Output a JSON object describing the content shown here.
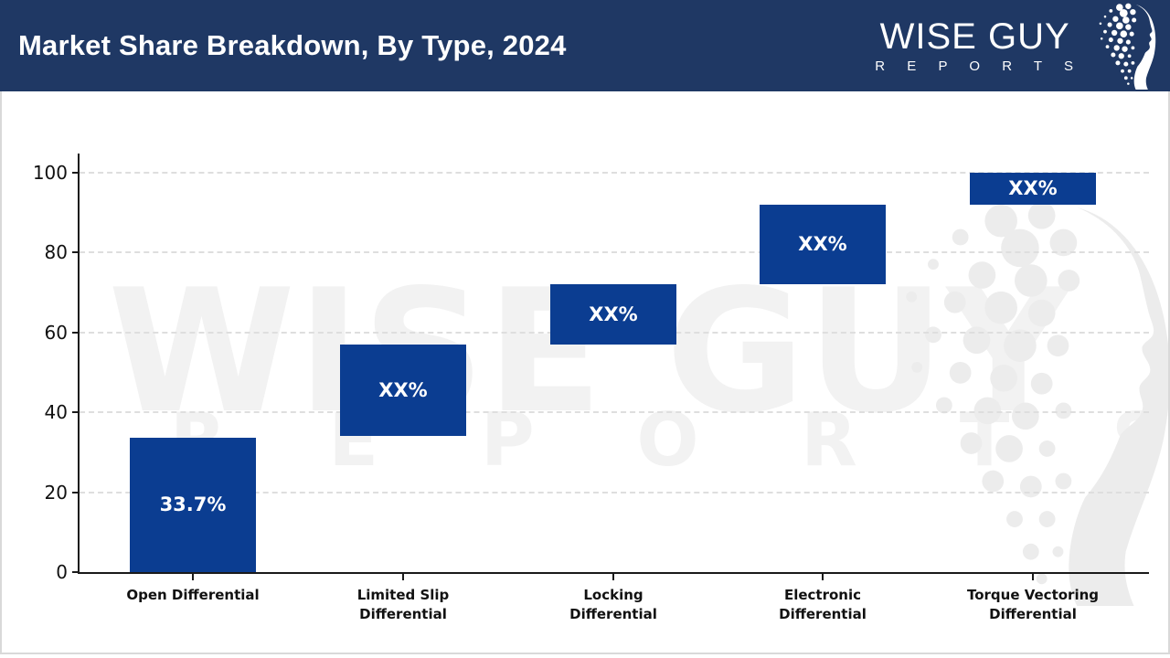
{
  "page": {
    "background": "#ffffff",
    "frame_border_color": "#d9d9d9"
  },
  "header": {
    "background": "#1f3864",
    "title": "Market Share Breakdown, By Type, 2024",
    "logo": {
      "name": "WISE GUY",
      "sub": "R E P O R T S"
    }
  },
  "watermark": {
    "line1": "WISE GUY",
    "line2": "R E P O R T S",
    "color": "#f2f2f2"
  },
  "chart_data": {
    "type": "bar",
    "variant": "waterfall",
    "title": "Market Share Breakdown, By Type, 2024",
    "xlabel": "",
    "ylabel": "",
    "ylim": [
      0,
      105
    ],
    "yticks": [
      0,
      20,
      40,
      60,
      80,
      100
    ],
    "grid": "horizontal-dashed",
    "legend": "none",
    "bar_color": "#0b3d91",
    "bar_label_color": "#ffffff",
    "axis_color": "#1a1a1a",
    "grid_color": "#dedede",
    "categories": [
      "Open Differential",
      "Limited Slip\nDifferential",
      "Locking\nDifferential",
      "Electronic\nDifferential",
      "Torque Vectoring\nDifferential"
    ],
    "bars": [
      {
        "from": 0,
        "to": 33.7,
        "label": "33.7%"
      },
      {
        "from": 34,
        "to": 57,
        "label": "XX%"
      },
      {
        "from": 57,
        "to": 72,
        "label": "XX%"
      },
      {
        "from": 72,
        "to": 92,
        "label": "XX%"
      },
      {
        "from": 92,
        "to": 100,
        "label": "XX%"
      }
    ]
  }
}
